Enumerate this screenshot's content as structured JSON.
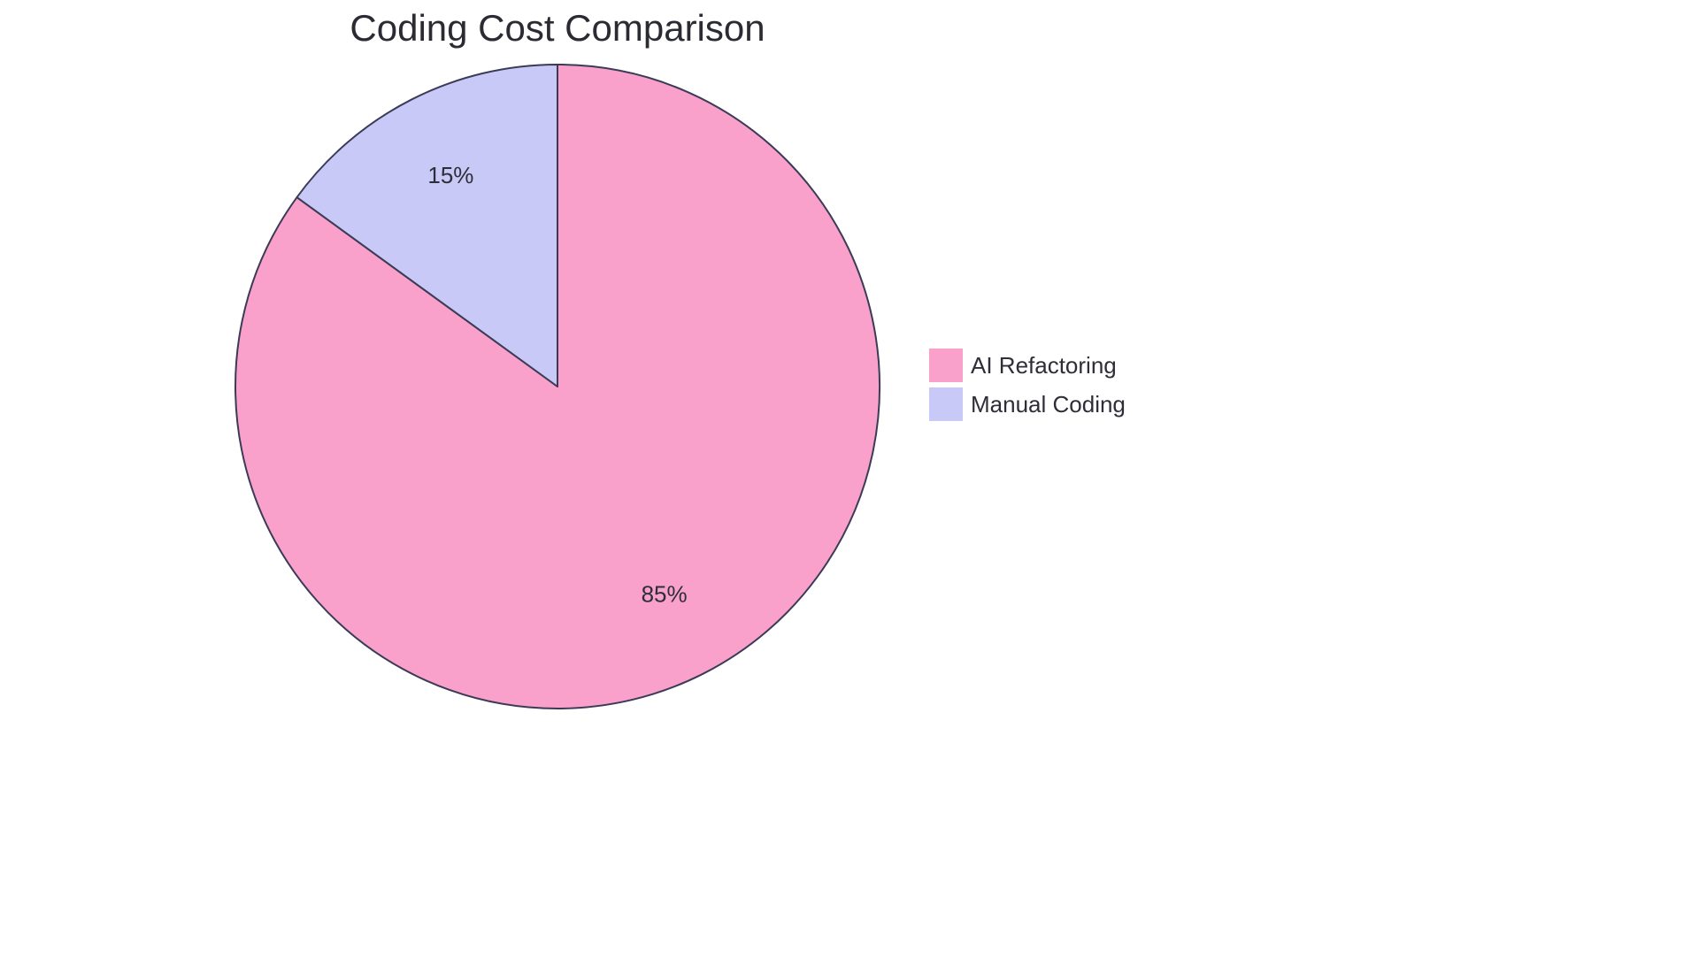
{
  "chart_data": {
    "type": "pie",
    "title": "Coding Cost Comparison",
    "labels": [
      "AI Refactoring",
      "Manual Coding"
    ],
    "values": [
      85,
      15
    ],
    "slice_labels": [
      "85%",
      "15%"
    ],
    "colors": [
      "#f9a0cb",
      "#c9c9f7"
    ],
    "outline_color": "#3b3b58",
    "text_color": "#2e2e38",
    "start_angle_deg": 0,
    "direction": "clockwise",
    "legend_position": "right",
    "background": "#ffffff"
  },
  "legend": {
    "items": [
      {
        "label": "AI Refactoring",
        "color": "#f9a0cb"
      },
      {
        "label": "Manual Coding",
        "color": "#c9c9f7"
      }
    ]
  }
}
